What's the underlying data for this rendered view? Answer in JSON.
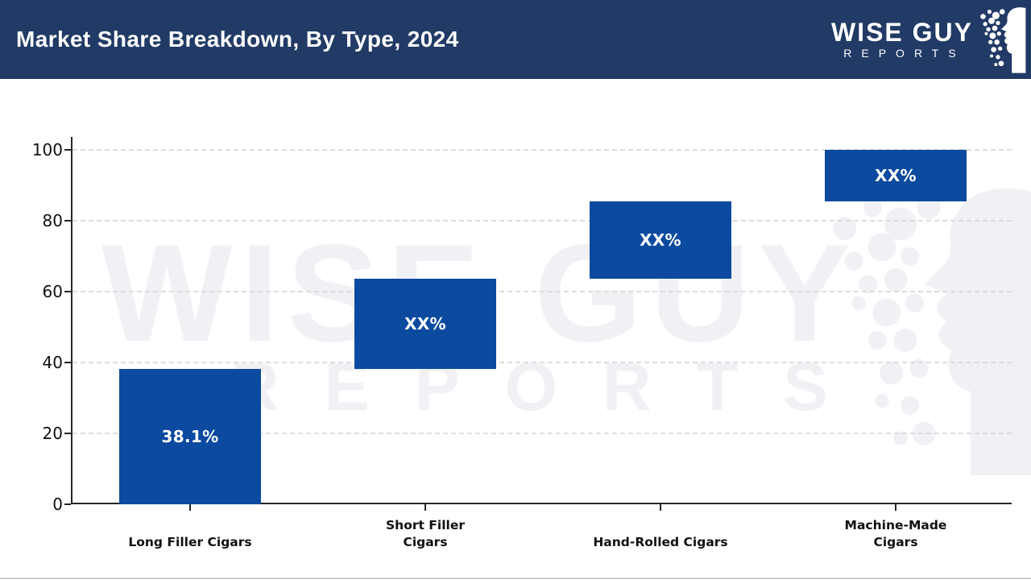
{
  "header": {
    "title": "Market Share Breakdown, By Type, 2024",
    "logo": {
      "line1": "WISE GUY",
      "line2": "REPORTS"
    }
  },
  "watermark": {
    "line1": "WISE GUY",
    "line2": "REPORTS"
  },
  "chart_data": {
    "type": "bar",
    "subtype": "floating-waterfall",
    "title": "Market Share Breakdown, By Type, 2024",
    "categories": [
      "Long Filler Cigars",
      "Short Filler\nCigars",
      "Hand-Rolled Cigars",
      "Machine-Made\nCigars"
    ],
    "series": [
      {
        "name": "Market Share (%)",
        "ranges": [
          [
            0,
            38.1
          ],
          [
            38.1,
            63.6
          ],
          [
            63.6,
            85.4
          ],
          [
            85.4,
            100
          ]
        ]
      }
    ],
    "bar_labels": [
      "38.1%",
      "XX%",
      "XX%",
      "XX%"
    ],
    "xlabel": "",
    "ylabel": "",
    "ylim": [
      0,
      100
    ],
    "yticks": [
      0,
      20,
      40,
      60,
      80,
      100
    ],
    "grid": "horizontal-dashed",
    "legend": "none"
  },
  "colors": {
    "header_bg": "#213a66",
    "bar": "#0b4a9f",
    "bar_label": "#ffffff",
    "grid": "#dcdcdc",
    "axis": "#262626",
    "watermark": "#f0f1f4"
  }
}
